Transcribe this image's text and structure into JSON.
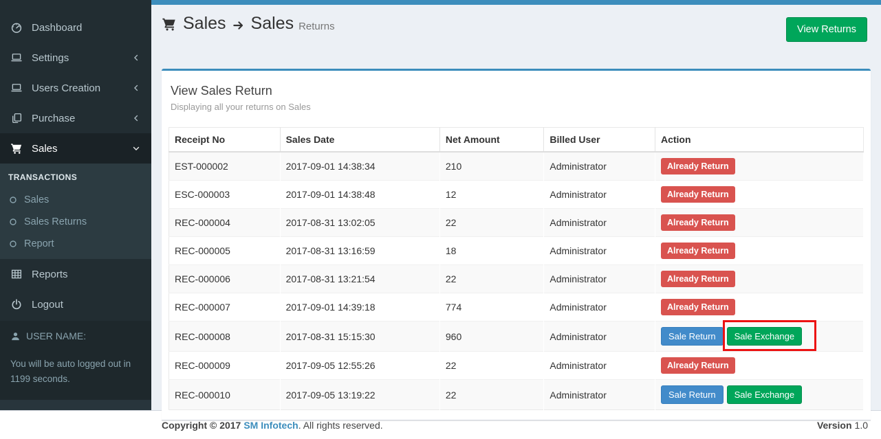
{
  "colors": {
    "accent": "#3c8dbc",
    "success_green": "#00a65a",
    "danger_red": "#d9534f",
    "primary_blue": "#428bca",
    "sidebar_bg": "#222d32",
    "sidebar_active_bg": "#1a2226",
    "submenu_bg": "#2c3b41",
    "content_bg": "#ecf0f5",
    "annotation_red": "#ec1212"
  },
  "sidebar": {
    "items": [
      {
        "label": "Dashboard",
        "icon": "dashboard-icon"
      },
      {
        "label": "Settings",
        "icon": "laptop-icon",
        "chevron": "left"
      },
      {
        "label": "Users Creation",
        "icon": "laptop-icon",
        "chevron": "left"
      },
      {
        "label": "Purchase",
        "icon": "copy-icon",
        "chevron": "left"
      },
      {
        "label": "Sales",
        "icon": "cart-icon",
        "chevron": "down",
        "active": true
      }
    ],
    "submenu_header": "TRANSACTIONS",
    "submenu": [
      "Sales",
      "Sales Returns",
      "Report"
    ],
    "items_bottom": [
      {
        "label": "Reports",
        "icon": "table-icon"
      },
      {
        "label": "Logout",
        "icon": "power-icon"
      }
    ],
    "user_panel": {
      "label": "USER NAME:",
      "note": "You will be auto logged out in 1199 seconds."
    }
  },
  "header": {
    "title_primary": "Sales",
    "title_secondary": "Sales",
    "title_sub": "Returns",
    "action_button": "View Returns"
  },
  "panel": {
    "title": "View Sales Return",
    "subtitle": "Displaying all your returns on Sales"
  },
  "table": {
    "columns": [
      "Receipt No",
      "Sales Date",
      "Net Amount",
      "Billed User",
      "Action"
    ],
    "action_labels": {
      "already_return": "Already Return",
      "sale_return": "Sale Return",
      "sale_exchange": "Sale Exchange"
    },
    "rows": [
      {
        "receipt": "EST-000002",
        "date": "2017-09-01 14:38:34",
        "amount": "210",
        "user": "Administrator",
        "actions": [
          "already_return"
        ]
      },
      {
        "receipt": "ESC-000003",
        "date": "2017-09-01 14:38:48",
        "amount": "12",
        "user": "Administrator",
        "actions": [
          "already_return"
        ]
      },
      {
        "receipt": "REC-000004",
        "date": "2017-08-31 13:02:05",
        "amount": "22",
        "user": "Administrator",
        "actions": [
          "already_return"
        ]
      },
      {
        "receipt": "REC-000005",
        "date": "2017-08-31 13:16:59",
        "amount": "18",
        "user": "Administrator",
        "actions": [
          "already_return"
        ]
      },
      {
        "receipt": "REC-000006",
        "date": "2017-08-31 13:21:54",
        "amount": "22",
        "user": "Administrator",
        "actions": [
          "already_return"
        ]
      },
      {
        "receipt": "REC-000007",
        "date": "2017-09-01 14:39:18",
        "amount": "774",
        "user": "Administrator",
        "actions": [
          "already_return"
        ]
      },
      {
        "receipt": "REC-000008",
        "date": "2017-08-31 15:15:30",
        "amount": "960",
        "user": "Administrator",
        "actions": [
          "sale_return",
          "sale_exchange"
        ],
        "highlight": "sale_exchange"
      },
      {
        "receipt": "REC-000009",
        "date": "2017-09-05 12:55:26",
        "amount": "22",
        "user": "Administrator",
        "actions": [
          "already_return"
        ]
      },
      {
        "receipt": "REC-000010",
        "date": "2017-09-05 13:19:22",
        "amount": "22",
        "user": "Administrator",
        "actions": [
          "sale_return",
          "sale_exchange"
        ]
      }
    ]
  },
  "footer": {
    "copyright_prefix": "Copyright © 2017",
    "company": "SM Infotech",
    "copyright_suffix": ". All rights reserved.",
    "version_label": "Version",
    "version_value": "1.0"
  }
}
